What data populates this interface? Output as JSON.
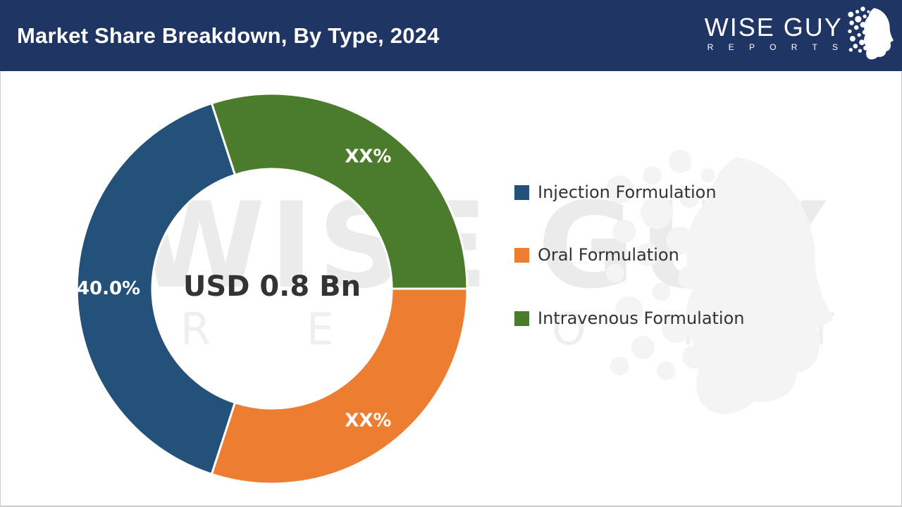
{
  "header": {
    "title": "Market Share Breakdown, By Type, 2024",
    "logo": {
      "line1": "WISE GUY",
      "line2": "R E P O R T S"
    }
  },
  "watermark": {
    "line1": "WISE GUY",
    "line2": "R E P O R T S"
  },
  "chart_data": {
    "type": "pie",
    "subtype": "donut",
    "title": "Market Share Breakdown, By Type, 2024",
    "center_label": "USD 0.8 Bn",
    "unit": "percent",
    "rotation_deg": 198,
    "segments": [
      {
        "name": "Injection Formulation",
        "value": 40,
        "label": "40.0%",
        "color": "#24517a"
      },
      {
        "name": "Intravenous Formulation",
        "value": 30,
        "label": "XX%",
        "color": "#4a7c2b"
      },
      {
        "name": "Oral Formulation",
        "value": 30,
        "label": "XX%",
        "color": "#ed7d31"
      }
    ],
    "legend": [
      {
        "label": "Injection Formulation",
        "color": "#24517a"
      },
      {
        "label": "Oral Formulation",
        "color": "#ed7d31"
      },
      {
        "label": "Intravenous Formulation",
        "color": "#4a7c2b"
      }
    ],
    "legend_position": "right"
  },
  "colors": {
    "header_bg": "#1f3564",
    "text_dark": "#333333",
    "segment_label": "#ffffff",
    "watermark": "#ebebeb",
    "border": "#cccccc"
  }
}
